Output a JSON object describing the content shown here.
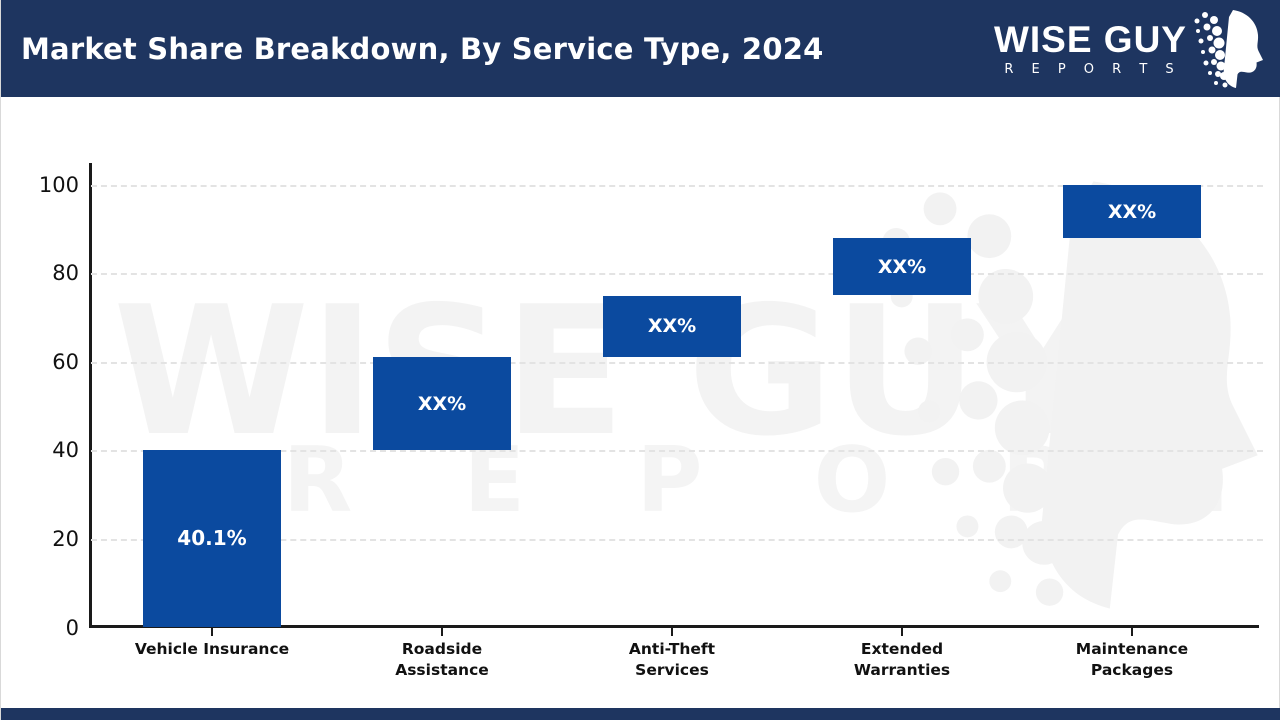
{
  "header": {
    "title": "Market Share Breakdown, By Service Type, 2024",
    "logo": {
      "line1": "WISE GUY",
      "line2": "R E P O R T S"
    },
    "bg_color": "#1e3560"
  },
  "watermark": {
    "line1": "WISE GUY",
    "line2": "R E P O R T S"
  },
  "chart_data": {
    "type": "bar",
    "subtype": "waterfall",
    "title": "Market Share Breakdown, By Service Type, 2024",
    "categories": [
      "Vehicle Insurance",
      "Roadside Assistance",
      "Anti-Theft Services",
      "Extended Warranties",
      "Maintenance Packages"
    ],
    "category_lines": [
      [
        "Vehicle Insurance"
      ],
      [
        "Roadside",
        "Assistance"
      ],
      [
        "Anti-Theft",
        "Services"
      ],
      [
        "Extended",
        "Warranties"
      ],
      [
        "Maintenance",
        "Packages"
      ]
    ],
    "segments": [
      {
        "category": "Vehicle Insurance",
        "start": 0,
        "end": 40.1,
        "label": "40.1%"
      },
      {
        "category": "Roadside Assistance",
        "start": 40.1,
        "end": 61,
        "label": "XX%"
      },
      {
        "category": "Anti-Theft Services",
        "start": 61,
        "end": 75,
        "label": "XX%"
      },
      {
        "category": "Extended Warranties",
        "start": 75,
        "end": 88,
        "label": "XX%"
      },
      {
        "category": "Maintenance Packages",
        "start": 88,
        "end": 100,
        "label": "XX%"
      }
    ],
    "ylim": [
      0,
      100
    ],
    "yticks": [
      0,
      20,
      40,
      60,
      80,
      100
    ],
    "xlabel": "",
    "ylabel": "",
    "grid": "horizontal-dashed",
    "legend": "none",
    "bar_color": "#0b4a9f",
    "bar_label_color": "#ffffff",
    "axis_color": "#1a1a1a",
    "gridline_color": "#e3e3e3"
  }
}
